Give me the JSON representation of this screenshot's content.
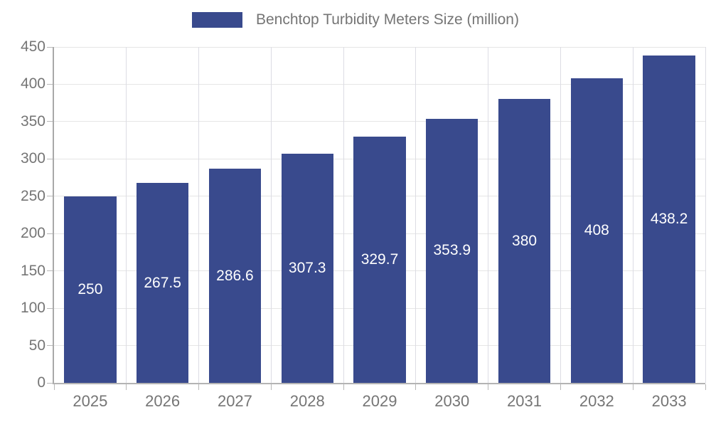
{
  "legend": {
    "label": "Benchtop Turbidity Meters Size (million)"
  },
  "colors": {
    "bar": "#394a8d",
    "bar_label": "#ffffff",
    "axis_text": "#757575",
    "grid_horizontal": "#e5e5e5",
    "grid_vertical": "#dcdce4",
    "axis_line": "#a9a9a9",
    "background": "#ffffff"
  },
  "chart_data": {
    "type": "bar",
    "title": "Benchtop Turbidity Meters Size (million)",
    "series": [
      {
        "name": "Benchtop Turbidity Meters Size (million)",
        "values": [
          250,
          267.5,
          286.6,
          307.3,
          329.7,
          353.9,
          380,
          408,
          438.2
        ],
        "labels": [
          "250",
          "267.5",
          "286.6",
          "307.3",
          "329.7",
          "353.9",
          "380",
          "408",
          "438.2"
        ]
      }
    ],
    "categories": [
      "2025",
      "2026",
      "2027",
      "2028",
      "2029",
      "2030",
      "2031",
      "2032",
      "2033"
    ],
    "xlabel": "",
    "ylabel": "",
    "ylim": [
      0,
      450
    ],
    "yticks": [
      0,
      50,
      100,
      150,
      200,
      250,
      300,
      350,
      400,
      450
    ],
    "grid": true,
    "legend_position": "top",
    "bar_label_position": "center"
  }
}
